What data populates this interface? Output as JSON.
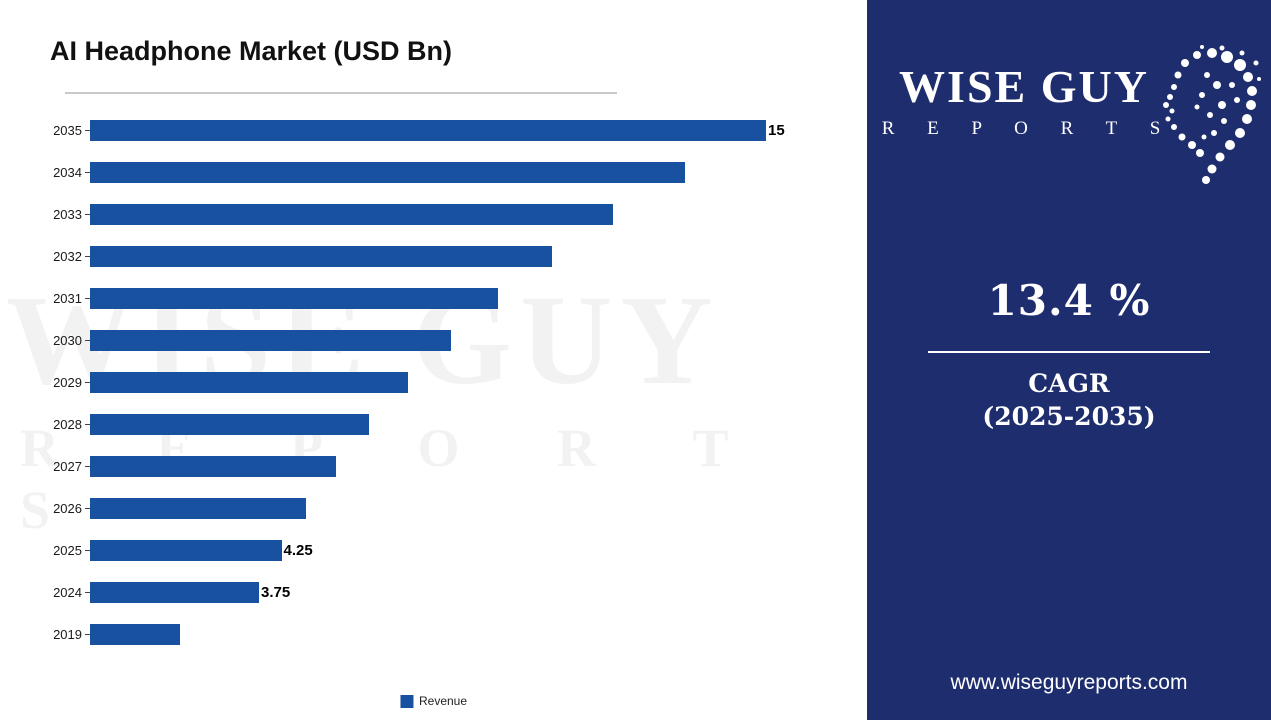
{
  "header": {
    "title": "AI Headphone Market (USD Bn)"
  },
  "chart_data": {
    "type": "bar",
    "orientation": "horizontal",
    "title": "AI Headphone Market (USD Bn)",
    "xlabel": "",
    "ylabel": "",
    "xlim": [
      0,
      15.6
    ],
    "grid": false,
    "legend_position": "bottom",
    "legend": [
      "Revenue"
    ],
    "bar_color": "#17519f",
    "categories": [
      "2035",
      "2034",
      "2033",
      "2032",
      "2031",
      "2030",
      "2029",
      "2028",
      "2027",
      "2026",
      "2025",
      "2024",
      "2019"
    ],
    "values": [
      15,
      13.2,
      11.6,
      10.25,
      9.05,
      8.0,
      7.05,
      6.2,
      5.45,
      4.8,
      4.25,
      3.75,
      2.0
    ],
    "value_labels": {
      "2035": "15",
      "2025": "4.25",
      "2024": "3.75"
    }
  },
  "watermark": {
    "line1": "WISE GUY",
    "line2": "R E P O R T S"
  },
  "side_panel": {
    "bg_color": "#1e2d6e",
    "logo_line1": "WISE GUY",
    "logo_line2": "R E P O R T S",
    "cagr_value": "13.4 %",
    "cagr_label_line1": "CAGR",
    "cagr_label_line2": "(2025-2035)",
    "website": "www.wiseguyreports.com"
  }
}
